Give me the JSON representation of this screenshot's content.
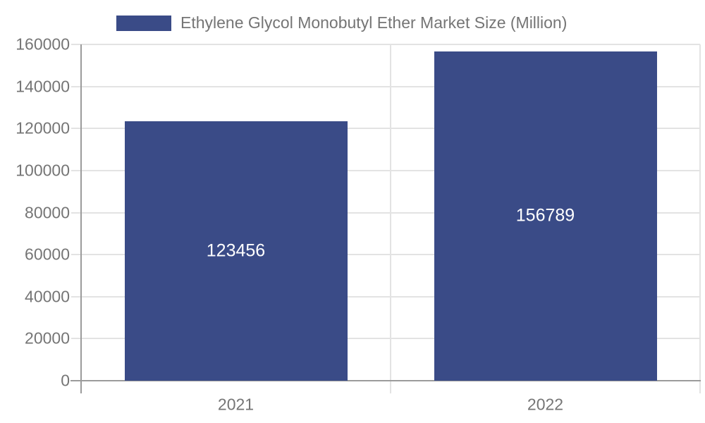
{
  "legend": {
    "label": "Ethylene Glycol Monobutyl Ether Market Size (Million)"
  },
  "chart_data": {
    "type": "bar",
    "title": "Ethylene Glycol Monobutyl Ether Market Size (Million)",
    "xlabel": "",
    "ylabel": "",
    "categories": [
      "2021",
      "2022"
    ],
    "series": [
      {
        "name": "Ethylene Glycol Monobutyl Ether Market Size (Million)",
        "values": [
          123456,
          156789
        ]
      }
    ],
    "values": [
      123456,
      156789
    ],
    "value_labels": [
      "123456",
      "156789"
    ],
    "ylim": [
      0,
      160000
    ],
    "yticks": [
      0,
      20000,
      40000,
      60000,
      80000,
      100000,
      120000,
      140000,
      160000
    ],
    "grid": true,
    "legend_position": "top",
    "colors": {
      "bar": "#3A4B87",
      "value_label": "#FFFFFF",
      "axis_text": "#757575",
      "grid_line": "#E3E3E3",
      "axis_line": "#9B9B9B",
      "background": "#FFFFFF"
    }
  }
}
